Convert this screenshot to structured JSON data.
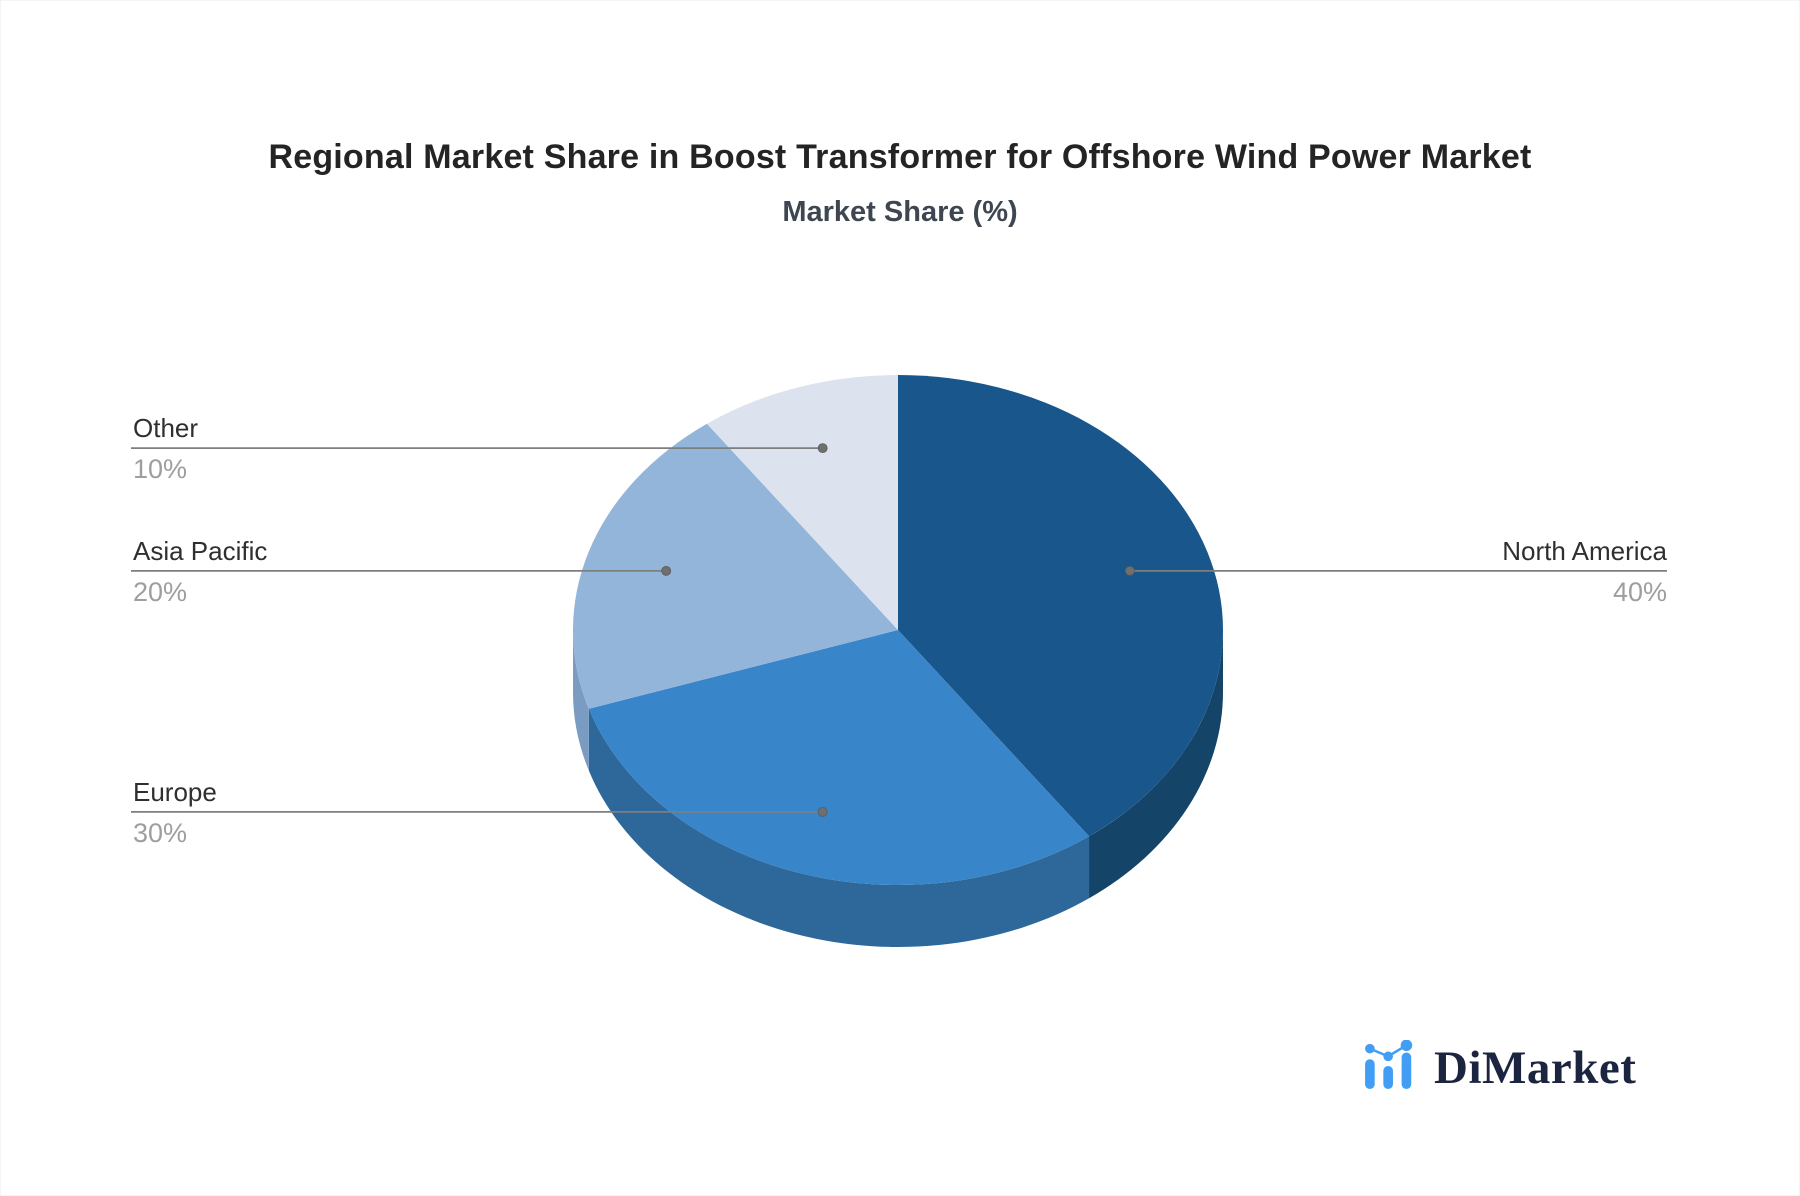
{
  "title": "Regional Market Share in Boost Transformer for Offshore Wind Power Market",
  "subtitle": "Market Share (%)",
  "colors": {
    "title": "#242424",
    "subtitle": "#3E4751",
    "background": "#FFFFFF"
  },
  "watermark": {
    "brand": "DiMarket",
    "icon": "bar-line-chart-icon",
    "icon_color": "#429EF5",
    "text_color": "#1B2540"
  },
  "chart_data": {
    "type": "pie",
    "style": "3d",
    "title": "Regional Market Share in Boost Transformer for Offshore Wind Power Market",
    "subtitle": "Market Share (%)",
    "unit": "%",
    "start_angle_deg": 0,
    "direction": "clockwise",
    "legend_position": "callout-labels",
    "slices": [
      {
        "label": "North America",
        "value": 40,
        "color": "#19568C",
        "side_color": "#144467"
      },
      {
        "label": "Europe",
        "value": 30,
        "color": "#3885C9",
        "side_color": "#2E689A"
      },
      {
        "label": "Asia Pacific",
        "value": 20,
        "color": "#94B5DA",
        "side_color": "#7A9CC2"
      },
      {
        "label": "Other",
        "value": 10,
        "color": "#DCE3EE",
        "side_color": "#B9C6DA"
      }
    ],
    "connector_color": "#7E7E7E",
    "connector_dot_color": "#6F6F6F",
    "label_color": "#2F2F2F",
    "value_color": "#9E9E9E"
  }
}
